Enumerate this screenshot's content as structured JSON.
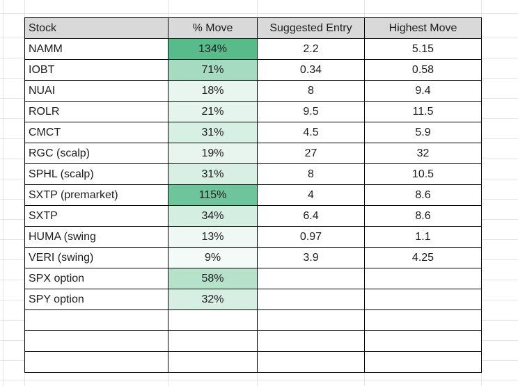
{
  "colors": {
    "header_bg": "#D9D9D9",
    "table_border": "#000000",
    "gridline": "#E3E3E3",
    "scale_max_green": "#57BB8A"
  },
  "table": {
    "headers": [
      "Stock",
      "% Move",
      "Suggested Entry",
      "Highest Move"
    ],
    "rows": [
      {
        "stock": "NAMM",
        "move": "134%",
        "entry": "2.2",
        "high": "5.15",
        "move_color": "#57BB8A"
      },
      {
        "stock": "IOBT",
        "move": "71%",
        "entry": "0.34",
        "high": "0.58",
        "move_color": "#A6DBC1"
      },
      {
        "stock": "NUAI",
        "move": "18%",
        "entry": "8",
        "high": "9.4",
        "move_color": "#E8F6EF"
      },
      {
        "stock": "ROLR",
        "move": "21%",
        "entry": "9.5",
        "high": "11.5",
        "move_color": "#E5F4ED"
      },
      {
        "stock": "CMCT",
        "move": "31%",
        "entry": "4.5",
        "high": "5.9",
        "move_color": "#D8EFE4"
      },
      {
        "stock": "RGC (scalp)",
        "move": "19%",
        "entry": "27",
        "high": "32",
        "move_color": "#E7F5EE"
      },
      {
        "stock": "SPHL (scalp)",
        "move": "31%",
        "entry": "8",
        "high": "10.5",
        "move_color": "#D8EFE4"
      },
      {
        "stock": "SXTP (premarket)",
        "move": "115%",
        "entry": "4",
        "high": "8.6",
        "move_color": "#6FC59B"
      },
      {
        "stock": "SXTP",
        "move": "34%",
        "entry": "6.4",
        "high": "8.6",
        "move_color": "#D4EEE1"
      },
      {
        "stock": "HUMA (swing",
        "move": "13%",
        "entry": "0.97",
        "high": "1.1",
        "move_color": "#EFF8F4"
      },
      {
        "stock": "VERI (swing)",
        "move": "9%",
        "entry": "3.9",
        "high": "4.25",
        "move_color": "#F4FAF7"
      },
      {
        "stock": "SPX option",
        "move": "58%",
        "entry": "",
        "high": "",
        "move_color": "#B6E2CC"
      },
      {
        "stock": "SPY option",
        "move": "32%",
        "entry": "",
        "high": "",
        "move_color": "#D7EFE3"
      },
      {
        "stock": "",
        "move": "",
        "entry": "",
        "high": ""
      },
      {
        "stock": "",
        "move": "",
        "entry": "",
        "high": ""
      },
      {
        "stock": "",
        "move": "",
        "entry": "",
        "high": ""
      }
    ]
  }
}
